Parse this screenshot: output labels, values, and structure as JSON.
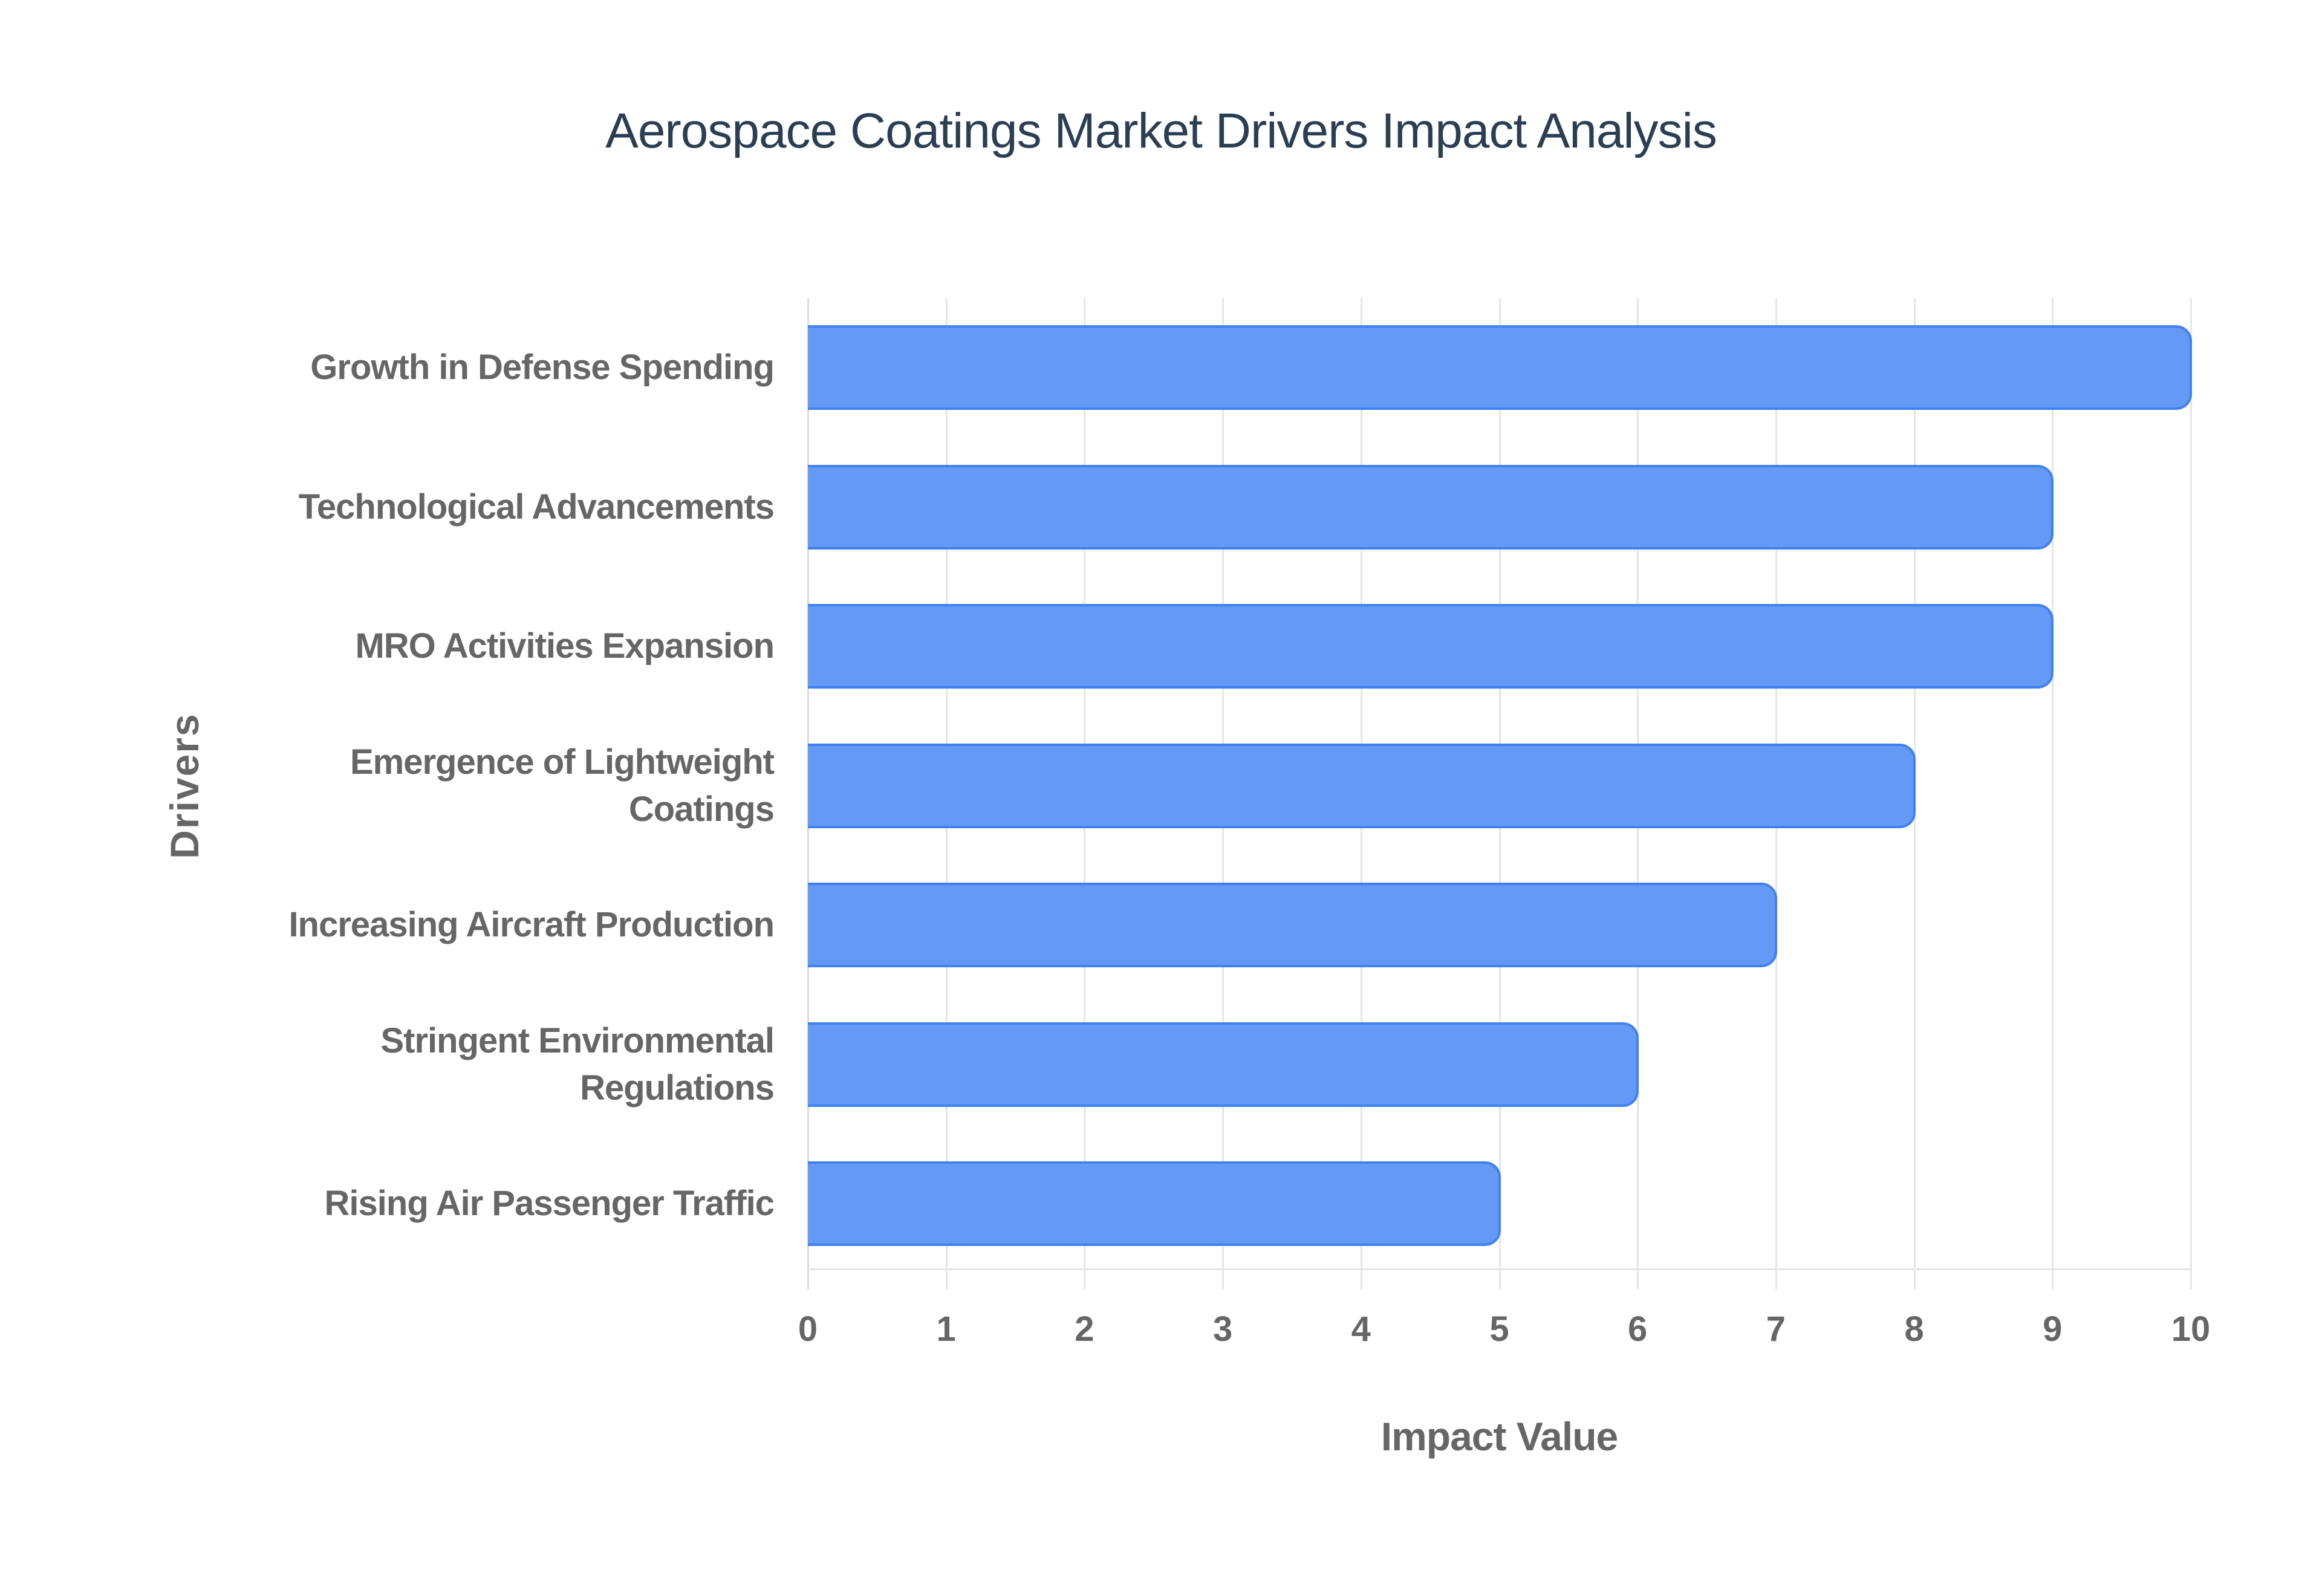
{
  "chart": {
    "title": "Aerospace Coatings Market Drivers Impact Analysis",
    "xlabel": "Impact Value",
    "ylabel": "Drivers",
    "bar_color": "#6199f5",
    "bar_border_color": "#3d7ff0",
    "xticks": [
      "0",
      "1",
      "2",
      "3",
      "4",
      "5",
      "6",
      "7",
      "8",
      "9",
      "10"
    ]
  },
  "chart_data": {
    "type": "bar",
    "orientation": "horizontal",
    "title": "Aerospace Coatings Market Drivers Impact Analysis",
    "xlabel": "Impact Value",
    "ylabel": "Drivers",
    "categories": [
      "Growth in Defense Spending",
      "Technological Advancements",
      "MRO Activities Expansion",
      "Emergence of Lightweight Coatings",
      "Increasing Aircraft Production",
      "Stringent Environmental Regulations",
      "Rising Air Passenger Traffic"
    ],
    "values": [
      10,
      9,
      9,
      8,
      7,
      6,
      5
    ],
    "xlim": [
      0,
      10
    ],
    "xticks": [
      0,
      1,
      2,
      3,
      4,
      5,
      6,
      7,
      8,
      9,
      10
    ],
    "grid": true,
    "legend": "none"
  },
  "bars": [
    {
      "label": "Growth in Defense Spending",
      "value": 10
    },
    {
      "label": "Technological Advancements",
      "value": 9
    },
    {
      "label": "MRO Activities Expansion",
      "value": 9
    },
    {
      "label": "Emergence of Lightweight Coatings",
      "value": 8
    },
    {
      "label": "Increasing Aircraft Production",
      "value": 7
    },
    {
      "label": "Stringent Environmental Regulations",
      "value": 6
    },
    {
      "label": "Rising Air Passenger Traffic",
      "value": 5
    }
  ]
}
